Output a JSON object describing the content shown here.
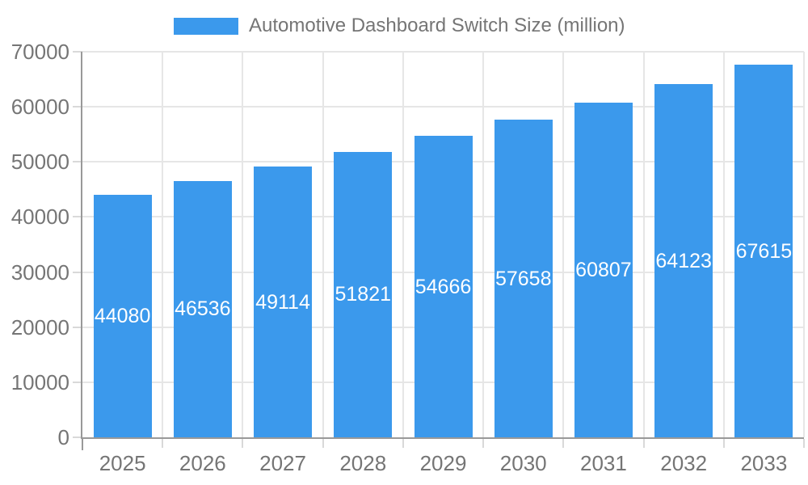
{
  "legend": {
    "label": "Automotive Dashboard Switch Size (million)"
  },
  "colors": {
    "bar": "#3B99EC",
    "bar_label_text": "#FFFFFF",
    "axis_line": "#999999",
    "grid_line": "#E6E6E6",
    "tick": "#D9D9D9",
    "axis_text": "#757575",
    "background": "#FFFFFF"
  },
  "chart_data": {
    "type": "bar",
    "title": "Automotive Dashboard Switch Size (million)",
    "categories": [
      "2025",
      "2026",
      "2027",
      "2028",
      "2029",
      "2030",
      "2031",
      "2032",
      "2033"
    ],
    "values": [
      44080,
      46536,
      49114,
      51821,
      54666,
      57658,
      60807,
      64123,
      67615
    ],
    "bar_labels": [
      "44080",
      "46536",
      "49114",
      "51821",
      "54666",
      "57658",
      "60807",
      "64123",
      "67615"
    ],
    "xlabel": "",
    "ylabel": "",
    "ylim": [
      0,
      70000
    ],
    "yticks": [
      0,
      10000,
      20000,
      30000,
      40000,
      50000,
      60000,
      70000
    ],
    "ytick_labels": [
      "0",
      "10000",
      "20000",
      "30000",
      "40000",
      "50000",
      "60000",
      "70000"
    ],
    "grid": true,
    "legend_position": "top",
    "bar_labels_visible": true
  }
}
